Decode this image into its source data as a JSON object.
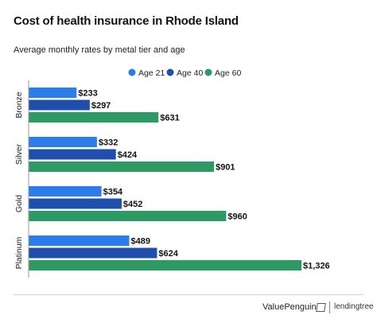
{
  "header": {
    "title": "Cost of health insurance in Rhode Island",
    "subtitle": "Average monthly rates by metal tier and age"
  },
  "footer": {
    "brand_left": "ValuePenguin",
    "brand_right": "lendingtree"
  },
  "chart_data": {
    "type": "bar",
    "orientation": "horizontal",
    "title": "Cost of health insurance in Rhode Island",
    "subtitle": "Average monthly rates by metal tier and age",
    "categories": [
      "Bronze",
      "Silver",
      "Gold",
      "Platinum"
    ],
    "series": [
      {
        "name": "Age 21",
        "color": "#2b7de9",
        "values": [
          233,
          332,
          354,
          489
        ],
        "labels": [
          "$233",
          "$332",
          "$354",
          "$489"
        ]
      },
      {
        "name": "Age 40",
        "color": "#1f4fad",
        "values": [
          297,
          424,
          452,
          624
        ],
        "labels": [
          "$297",
          "$424",
          "$452",
          "$624"
        ]
      },
      {
        "name": "Age 60",
        "color": "#2e9a63",
        "values": [
          631,
          901,
          960,
          1326
        ],
        "labels": [
          "$631",
          "$901",
          "$960",
          "$1,326"
        ]
      }
    ],
    "legend_position": "top-right",
    "grid": false
  }
}
